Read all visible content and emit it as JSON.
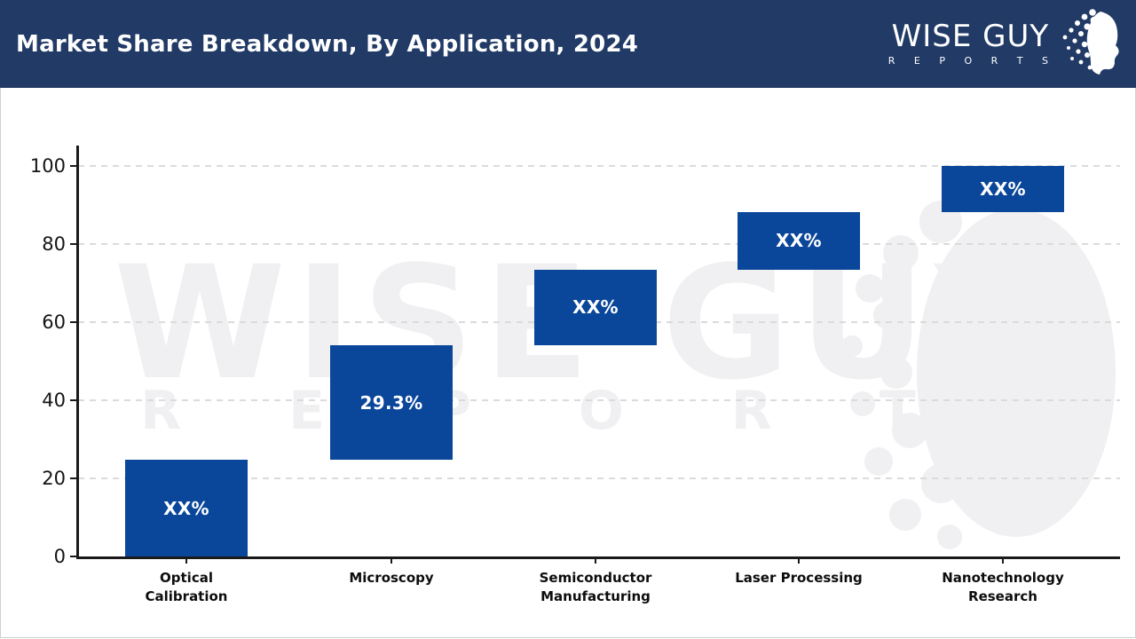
{
  "header": {
    "title": "Market Share Breakdown, By Application, 2024",
    "logo": {
      "line1": "WISE GUY",
      "line2": "R E P O R T S"
    }
  },
  "watermark": {
    "line1": "WISE GUY",
    "line2": "R E P O R T S"
  },
  "colors": {
    "header_bg": "#213A66",
    "bar": "#0A4699",
    "grid": "#DBDBDB",
    "axis": "#1A1A1A",
    "watermark": "#F0F0F2"
  },
  "chart_data": {
    "type": "bar",
    "subtype": "waterfall",
    "title": "Market Share Breakdown, By Application, 2024",
    "xlabel": "",
    "ylabel": "",
    "ylim": [
      0,
      105
    ],
    "yticks": [
      0,
      20,
      40,
      60,
      80,
      100
    ],
    "grid": "horizontal-dashed",
    "categories": [
      "Optical Calibration",
      "Microscopy",
      "Semiconductor Manufacturing",
      "Laser Processing",
      "Nanotechnology Research"
    ],
    "values": [
      24.7,
      29.3,
      19.5,
      14.7,
      11.8
    ],
    "bar_value_labels": [
      "XX%",
      "29.3%",
      "XX%",
      "XX%",
      "XX%"
    ],
    "segments": [
      {
        "category": "Optical\nCalibration",
        "start": 0,
        "end": 24.7,
        "label": "XX%"
      },
      {
        "category": "Microscopy",
        "start": 24.7,
        "end": 54.0,
        "label": "29.3%"
      },
      {
        "category": "Semiconductor\nManufacturing",
        "start": 54.0,
        "end": 73.5,
        "label": "XX%"
      },
      {
        "category": "Laser Processing",
        "start": 73.5,
        "end": 88.2,
        "label": "XX%"
      },
      {
        "category": "Nanotechnology\nResearch",
        "start": 88.2,
        "end": 100,
        "label": "XX%"
      }
    ]
  }
}
